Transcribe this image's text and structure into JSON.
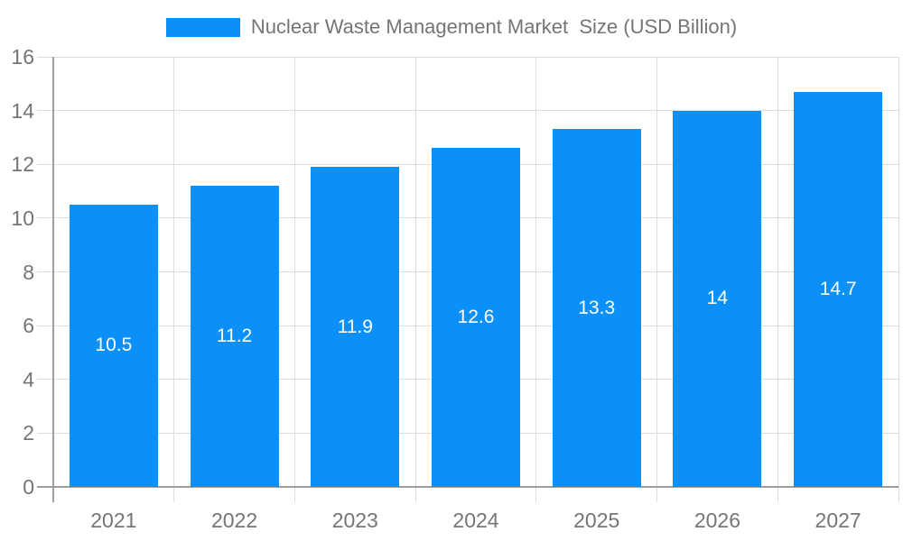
{
  "chart_data": {
    "type": "bar",
    "title": "Nuclear Waste Management Market  Size (USD Billion)",
    "categories": [
      "2021",
      "2022",
      "2023",
      "2024",
      "2025",
      "2026",
      "2027"
    ],
    "series": [
      {
        "name": "Nuclear Waste Management Market  Size (USD Billion)",
        "values": [
          10.5,
          11.2,
          11.9,
          12.6,
          13.3,
          14,
          14.7
        ]
      }
    ],
    "values": [
      10.5,
      11.2,
      11.9,
      12.6,
      13.3,
      14,
      14.7
    ],
    "bar_labels": [
      "10.5",
      "11.2",
      "11.9",
      "12.6",
      "13.3",
      "14",
      "14.7"
    ],
    "xlabel": "",
    "ylabel": "",
    "ylim": [
      0,
      16
    ],
    "yticks": [
      0,
      2,
      4,
      6,
      8,
      10,
      12,
      14,
      16
    ],
    "grid": true,
    "legend_position": "top",
    "colors": {
      "bar": "#0A90F8",
      "grid": "#DDDDDD",
      "axis": "#9E9E9E",
      "tick_label": "#757575",
      "title": "#757575",
      "bar_label": "#FFFFFF",
      "background": "#FFFFFF"
    }
  }
}
